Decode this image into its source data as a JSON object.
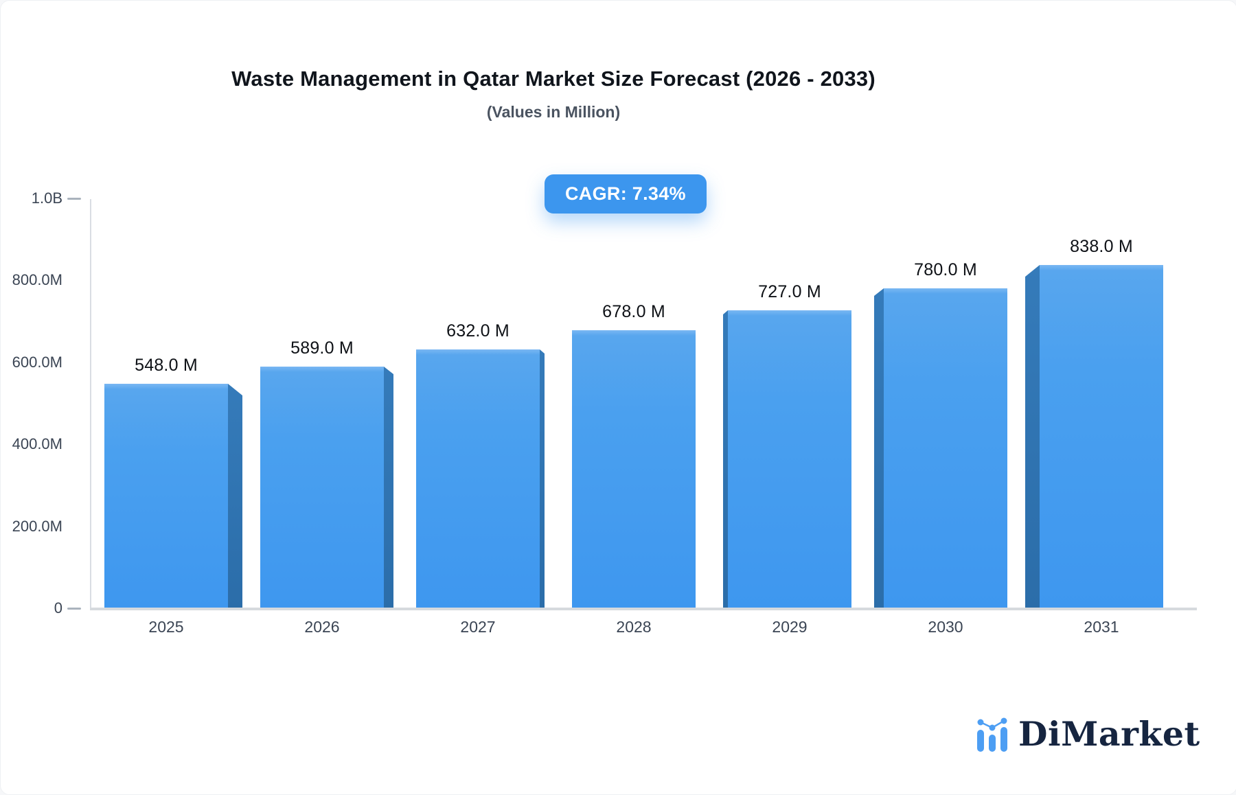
{
  "header": {
    "title": "Waste Management in Qatar Market Size Forecast (2026 - 2033)",
    "subtitle": "(Values in Million)",
    "cagr_badge": "CAGR: 7.34%"
  },
  "chart_data": {
    "type": "bar",
    "title": "Waste Management in Qatar Market Size Forecast (2026 - 2033)",
    "subtitle": "(Values in Million)",
    "cagr_percent": "7.34%",
    "unit": "Million",
    "categories": [
      "2025",
      "2026",
      "2027",
      "2028",
      "2029",
      "2030",
      "2031"
    ],
    "values": [
      548,
      589,
      632,
      678,
      727,
      780,
      838
    ],
    "value_labels": [
      "548.0 M",
      "589.0 M",
      "632.0 M",
      "678.0 M",
      "727.0 M",
      "780.0 M",
      "838.0 M"
    ],
    "xlabel": "",
    "ylabel": "",
    "ylim": [
      0,
      1000
    ],
    "y_ticks": [
      {
        "label": "1.0B",
        "value": 1000,
        "dash": true
      },
      {
        "label": "800.0M",
        "value": 800,
        "dash": false
      },
      {
        "label": "600.0M",
        "value": 600,
        "dash": false
      },
      {
        "label": "400.0M",
        "value": 400,
        "dash": false
      },
      {
        "label": "200.0M",
        "value": 200,
        "dash": false
      },
      {
        "label": "0",
        "value": 0,
        "dash": true
      }
    ],
    "grid": false,
    "legend_position": "none",
    "bar_style": "3d-perspective"
  },
  "branding": {
    "logo_text": "DiMarket",
    "logo_icon": "bar-chart-logo-icon"
  },
  "colors": {
    "accent_blue": "#3c96ee",
    "bar_face_top": "#58a6ee",
    "bar_face_bottom": "#3e97ef",
    "bar_side": "#2e74b5",
    "axis_line": "#d8dce1",
    "tick_text": "#3b4554",
    "title_text": "#10151c",
    "subtitle_text": "#4a5360",
    "logo_navy": "#162540"
  }
}
